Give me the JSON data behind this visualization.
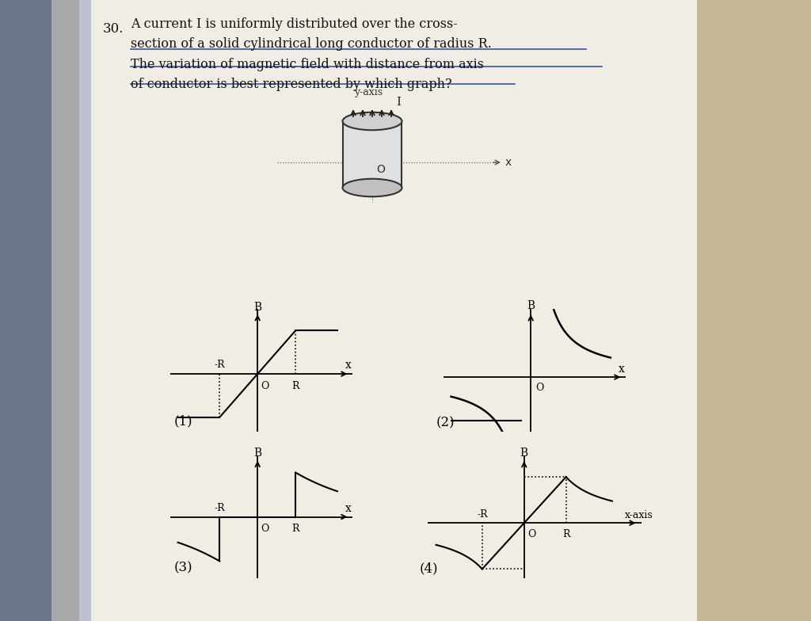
{
  "bg_color": "#c8b89a",
  "paper_color": "#f2ede4",
  "text_color": "#111111",
  "question_num": "30.",
  "question_text": "A current I is uniformly distributed over the cross-\nsection of a solid cylindrical long conductor of radius R.\nThe variation of magnetic field with distance from axis\nof conductor is best represented by which graph?",
  "graph_labels": [
    "(1)",
    "(2)",
    "(3)",
    "(4)"
  ],
  "label_B": "B",
  "label_x": "x",
  "label_O": "O",
  "label_R": "R",
  "label_negR": "-R",
  "label_xaxis": "x-axis",
  "label_yaxis": "y-axis",
  "label_I": "I"
}
